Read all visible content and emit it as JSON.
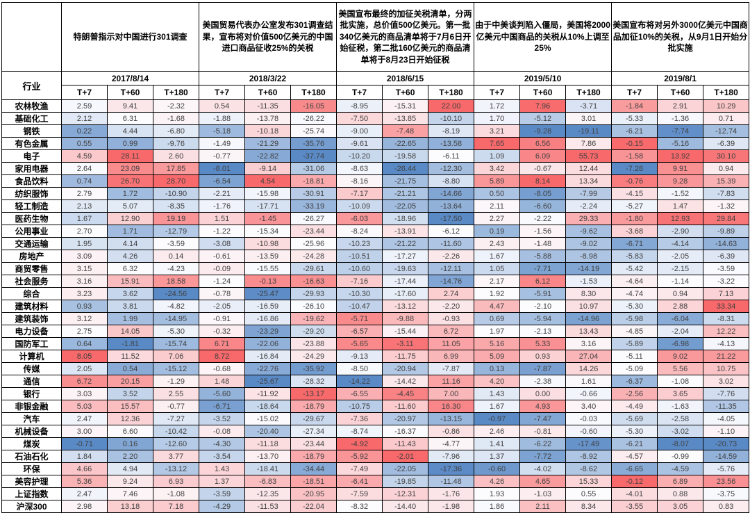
{
  "chart_data": {
    "type": "heatmap",
    "title": "",
    "row_header_label": "行业",
    "periods": [
      "T+7",
      "T+60",
      "T+180"
    ],
    "events": [
      {
        "date": "2017/8/14",
        "description": "特朗普指示对中国进行301调查"
      },
      {
        "date": "2018/3/22",
        "description": "美国贸易代表办公室发布301调查结果，宣布将对价值500亿美元的中国进口商品征收25%的关税"
      },
      {
        "date": "2018/6/15",
        "description": "美国宣布最终的加征关税清单，分两批实施，总价值500亿美元。第一批340亿美元的商品清单将于7月6日开始征税，第二批160亿美元的商品清单将于8月23日开始征税"
      },
      {
        "date": "2019/5/10",
        "description": "由于中美谈判陷入僵局，美国将2000亿美元中国商品的关税从10%上调至25%"
      },
      {
        "date": "2019/8/1",
        "description": "美国宣布将对另外3000亿美元中国商品加征10%的关税，从9月1日开始分批实施"
      }
    ],
    "rows": [
      {
        "industry": "农林牧渔",
        "values": [
          2.59,
          9.41,
          -2.32,
          0.54,
          -11.35,
          -16.05,
          -8.95,
          -15.31,
          22.0,
          1.72,
          7.96,
          -3.71,
          -1.84,
          2.91,
          10.29
        ]
      },
      {
        "industry": "基础化工",
        "values": [
          2.12,
          6.31,
          -1.68,
          -1.88,
          -13.78,
          -26.22,
          -7.5,
          -13.85,
          -10.1,
          1.7,
          -5.12,
          3.01,
          -5.33,
          -1.36,
          0.71
        ]
      },
      {
        "industry": "钢铁",
        "values": [
          0.22,
          4.44,
          -6.8,
          -5.18,
          -10.18,
          -25.74,
          -9.0,
          -7.48,
          -8.19,
          3.21,
          -9.28,
          -19.11,
          -6.21,
          -7.74,
          -12.74
        ]
      },
      {
        "industry": "有色金属",
        "values": [
          0.55,
          0.99,
          -9.76,
          -1.49,
          -21.29,
          -35.76,
          -9.61,
          -22.65,
          -13.58,
          7.65,
          6.56,
          7.86,
          -0.15,
          -5.16,
          -6.39
        ]
      },
      {
        "industry": "电子",
        "values": [
          4.59,
          28.11,
          2.6,
          -0.77,
          -22.82,
          -37.74,
          -10.2,
          -19.58,
          -6.11,
          1.09,
          6.09,
          55.73,
          -1.58,
          13.92,
          30.1
        ]
      },
      {
        "industry": "家用电器",
        "values": [
          2.64,
          23.09,
          17.85,
          -8.01,
          -9.14,
          -31.06,
          -8.63,
          -26.44,
          -12.3,
          3.42,
          -0.67,
          12.44,
          -7.28,
          9.91,
          0.94
        ]
      },
      {
        "industry": "食品饮料",
        "values": [
          0.74,
          26.7,
          28.7,
          -6.54,
          4.54,
          -18.81,
          -8.16,
          -21.75,
          -8.8,
          5.89,
          8.14,
          13.34,
          -0.76,
          9.28,
          15.39
        ]
      },
      {
        "industry": "纺织服饰",
        "values": [
          2.79,
          1.72,
          -10.9,
          -2.21,
          -15.98,
          -30.91,
          -7.17,
          -21.21,
          -14.66,
          0.5,
          -8.05,
          -7.99,
          -4.15,
          -1.52,
          -7.83
        ]
      },
      {
        "industry": "轻工制造",
        "values": [
          2.13,
          5.07,
          -8.35,
          -1.76,
          -17.71,
          -33.19,
          -10.09,
          -22.05,
          -13.64,
          2.11,
          -6.6,
          -2.24,
          -5.27,
          1.47,
          -1.32
        ]
      },
      {
        "industry": "医药生物",
        "values": [
          1.67,
          12.9,
          19.19,
          1.51,
          -1.45,
          -26.27,
          -6.03,
          -18.96,
          -17.5,
          2.27,
          -2.22,
          29.33,
          -1.8,
          12.93,
          29.84
        ]
      },
      {
        "industry": "公用事业",
        "values": [
          2.7,
          1.71,
          -12.79,
          -1.22,
          -15.34,
          -23.44,
          -8.24,
          -13.91,
          -6.12,
          0.19,
          -1.56,
          -9.62,
          -3.68,
          -2.9,
          -9.89
        ]
      },
      {
        "industry": "交通运输",
        "values": [
          1.95,
          4.14,
          -3.59,
          -3.08,
          -10.98,
          -25.96,
          -10.23,
          -21.22,
          -11.6,
          2.43,
          -1.48,
          -9.02,
          -6.71,
          -4.14,
          -14.63
        ]
      },
      {
        "industry": "房地产",
        "values": [
          3.09,
          4.26,
          0.14,
          -0.61,
          -13.59,
          -24.28,
          -10.51,
          -17.27,
          -2.26,
          1.67,
          -5.88,
          -8.98,
          -5.83,
          -2.05,
          -6.39
        ]
      },
      {
        "industry": "商贸零售",
        "values": [
          3.15,
          6.32,
          -4.23,
          -0.09,
          -15.55,
          -29.61,
          -10.6,
          -19.63,
          -12.11,
          1.05,
          -7.71,
          -14.19,
          -5.42,
          -2.15,
          -3.59
        ]
      },
      {
        "industry": "社会服务",
        "values": [
          3.16,
          15.91,
          18.58,
          -1.24,
          -0.13,
          -16.63,
          -7.16,
          -17.44,
          -14.76,
          2.17,
          6.12,
          -1.53,
          -4.64,
          -1.14,
          -3.22
        ]
      },
      {
        "industry": "综合",
        "values": [
          3.23,
          3.62,
          -24.56,
          -0.78,
          -25.47,
          -29.93,
          -10.3,
          -17.6,
          2.74,
          1.92,
          -5.91,
          8.3,
          -4.74,
          0.94,
          7.13
        ]
      },
      {
        "industry": "建筑材料",
        "values": [
          0.93,
          3.81,
          -4.82,
          -2.05,
          -16.59,
          -26.1,
          -10.47,
          -13.12,
          -2.2,
          4.47,
          -2.1,
          10.97,
          -5.3,
          2.88,
          33.34
        ]
      },
      {
        "industry": "建筑装饰",
        "values": [
          3.12,
          1.99,
          -14.95,
          -0.91,
          -16.86,
          -19.62,
          -5.71,
          -9.88,
          -0.93,
          0.69,
          -5.94,
          -14.96,
          -5.98,
          -6.04,
          -8.31
        ]
      },
      {
        "industry": "电力设备",
        "values": [
          2.75,
          14.05,
          -5.3,
          -0.32,
          -23.29,
          -29.2,
          -6.57,
          -15.44,
          6.72,
          1.97,
          -2.13,
          13.43,
          -4.85,
          -2.04,
          12.22
        ]
      },
      {
        "industry": "国防军工",
        "values": [
          0.64,
          -1.81,
          -15.74,
          6.71,
          -22.06,
          -23.88,
          -5.65,
          -3.11,
          11.05,
          5.16,
          5.33,
          3.16,
          -5.89,
          -6.98,
          -4.13
        ]
      },
      {
        "industry": "计算机",
        "values": [
          8.05,
          11.52,
          7.06,
          8.72,
          -16.84,
          -24.29,
          -9.13,
          -11.75,
          6.99,
          5.09,
          0.93,
          27.04,
          -5.11,
          9.02,
          21.22
        ]
      },
      {
        "industry": "传媒",
        "values": [
          2.05,
          0.54,
          -15.12,
          -0.68,
          -22.76,
          -35.92,
          -8.5,
          -20.94,
          -7.87,
          0.13,
          -7.87,
          14.26,
          -5.09,
          5.56,
          10.75
        ]
      },
      {
        "industry": "通信",
        "values": [
          6.72,
          20.15,
          -1.29,
          1.48,
          -25.67,
          -28.32,
          -14.22,
          -14.42,
          11.16,
          4.2,
          -2.38,
          1.61,
          -6.37,
          -1.08,
          3.02
        ]
      },
      {
        "industry": "银行",
        "values": [
          3.03,
          3.52,
          2.55,
          -5.6,
          -11.92,
          -13.17,
          -6.55,
          -4.45,
          7.0,
          1.43,
          0.0,
          -0.66,
          -2.56,
          3.65,
          -7.76
        ]
      },
      {
        "industry": "非银金融",
        "values": [
          5.03,
          15.57,
          -0.77,
          -6.71,
          -18.64,
          -18.79,
          -10.75,
          -11.6,
          16.3,
          1.67,
          4.93,
          3.4,
          -4.49,
          -1.63,
          -11.35
        ]
      },
      {
        "industry": "汽车",
        "values": [
          2.47,
          12.36,
          -7.27,
          -3.52,
          -15.02,
          -29.67,
          -7.36,
          -20.97,
          -13.15,
          -0.97,
          -7.47,
          -0.03,
          -5.69,
          -2.58,
          -4.05
        ]
      },
      {
        "industry": "机械设备",
        "values": [
          3.0,
          6.6,
          -10.42,
          -0.08,
          -20.4,
          -27.34,
          -8.74,
          -16.37,
          -0.86,
          2.46,
          -0.81,
          -0.6,
          -5.3,
          -3.02,
          -1.1
        ]
      },
      {
        "industry": "煤炭",
        "values": [
          -0.71,
          0.16,
          -12.6,
          -4.3,
          -11.18,
          -23.44,
          -4.92,
          -11.43,
          -4.77,
          1.41,
          -6.22,
          -17.49,
          -6.21,
          -8.07,
          -20.73
        ]
      },
      {
        "industry": "石油石化",
        "values": [
          1.84,
          2.2,
          3.77,
          -3.54,
          -13.7,
          -18.79,
          -5.92,
          -2.01,
          -7.96,
          1.37,
          -7.72,
          -8.92,
          -4.57,
          -0.99,
          -14.59
        ]
      },
      {
        "industry": "环保",
        "values": [
          4.66,
          4.94,
          -13.12,
          1.43,
          -18.41,
          -34.44,
          -7.49,
          -22.05,
          -17.36,
          -0.6,
          -4.02,
          -8.62,
          -6.65,
          -4.59,
          -5.76
        ]
      },
      {
        "industry": "美容护理",
        "values": [
          5.36,
          9.24,
          6.93,
          1.37,
          -6.83,
          -18.51,
          -6.41,
          -19.85,
          -11.48,
          4.26,
          4.65,
          15.33,
          -0.12,
          6.89,
          23.56
        ]
      },
      {
        "industry": "上证指数",
        "values": [
          2.47,
          7.46,
          -1.08,
          -3.59,
          -12.35,
          -20.95,
          -7.59,
          -12.31,
          -1.76,
          1.93,
          -1.03,
          0.55,
          -4.01,
          0.88,
          -3.75
        ]
      },
      {
        "industry": "沪深300",
        "values": [
          2.98,
          13.18,
          7.18,
          -4.29,
          -11.53,
          -22.04,
          -8.32,
          -14.4,
          -1.98,
          1.86,
          2.11,
          8.34,
          -3.55,
          3.05,
          0.83
        ]
      }
    ],
    "heatmap_colors": {
      "min_color": "#5A8AC6",
      "mid_color": "#FCFCFF",
      "max_color": "#F8696B"
    },
    "color_scale": "per-column 3-color scale: column min = blue, column median = white, column max = red",
    "value_format": "2 decimal places",
    "grid": true,
    "legend": false
  }
}
